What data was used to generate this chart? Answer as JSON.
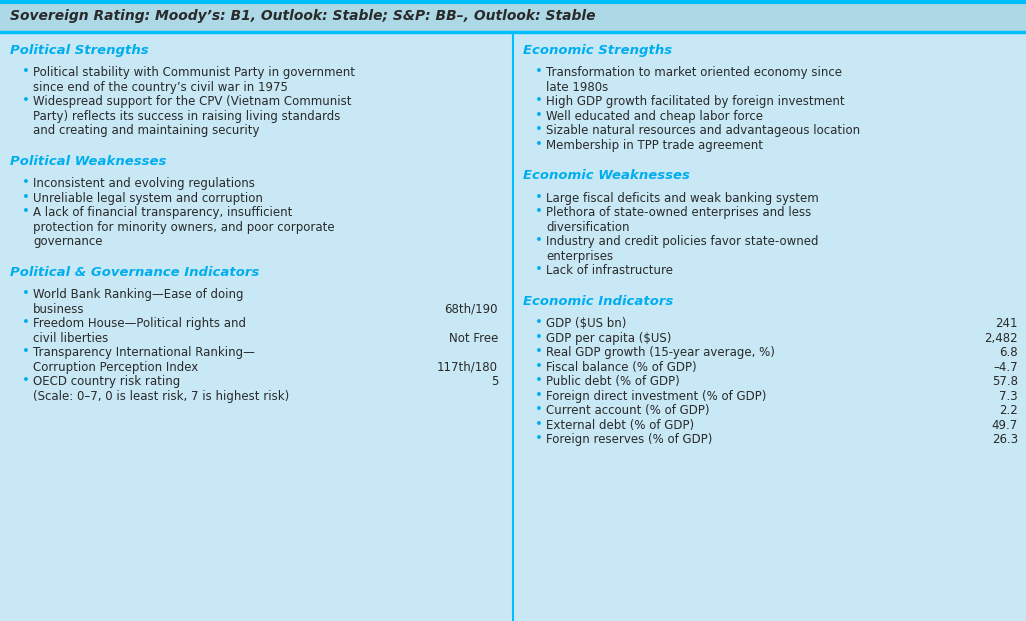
{
  "title": "Sovereign Rating: Moody’s: B1, Outlook: Stable; S&P: BB–, Outlook: Stable",
  "title_bg": "#ADD8E6",
  "title_border_top": "#00BFFF",
  "title_border_bottom": "#00BFFF",
  "body_bg": "#C8E8F5",
  "header_color": "#00AEEF",
  "text_color": "#2a2a2a",
  "bullet_color": "#00AEEF",
  "divider_color": "#00BFFF",
  "left_col": {
    "sections": [
      {
        "header": "Political Strengths",
        "bullets": [
          [
            "Political stability with Communist Party in government",
            "since end of the country’s civil war in 1975"
          ],
          [
            "Widespread support for the CPV (Vietnam Communist",
            "Party) reflects its success in raising living standards",
            "and creating and maintaining security"
          ]
        ]
      },
      {
        "header": "Political Weaknesses",
        "bullets": [
          [
            "Inconsistent and evolving regulations"
          ],
          [
            "Unreliable legal system and corruption"
          ],
          [
            "A lack of financial transparency, insufficient",
            "protection for minority owners, and poor corporate",
            "governance"
          ]
        ]
      },
      {
        "header": "Political & Governance Indicators",
        "bullets": [
          [
            "World Bank Ranking—Ease of doing",
            "business"
          ],
          [
            "Freedom House—Political rights and",
            "civil liberties"
          ],
          [
            "Transparency International Ranking—",
            "Corruption Perception Index"
          ],
          [
            "OECD country risk rating"
          ],
          [
            "(Scale: 0–7, 0 is least risk, 7 is highest risk)"
          ]
        ],
        "values": [
          "68th/190",
          "Not Free",
          "117th/180",
          "5",
          ""
        ]
      }
    ]
  },
  "right_col": {
    "sections": [
      {
        "header": "Economic Strengths",
        "bullets": [
          [
            "Transformation to market oriented economy since",
            "late 1980s"
          ],
          [
            "High GDP growth facilitated by foreign investment"
          ],
          [
            "Well educated and cheap labor force"
          ],
          [
            "Sizable natural resources and advantageous location"
          ],
          [
            "Membership in TPP trade agreement"
          ]
        ]
      },
      {
        "header": "Economic Weaknesses",
        "bullets": [
          [
            "Large fiscal deficits and weak banking system"
          ],
          [
            "Plethora of state-owned enterprises and less",
            "diversification"
          ],
          [
            "Industry and credit policies favor state-owned",
            "enterprises"
          ],
          [
            "Lack of infrastructure"
          ]
        ]
      },
      {
        "header": "Economic Indicators",
        "bullets": [
          [
            "GDP ($US bn)"
          ],
          [
            "GDP per capita ($US)"
          ],
          [
            "Real GDP growth (15-year average, %)"
          ],
          [
            "Fiscal balance (% of GDP)"
          ],
          [
            "Public debt (% of GDP)"
          ],
          [
            "Foreign direct investment (% of GDP)"
          ],
          [
            "Current account (% of GDP)"
          ],
          [
            "External debt (% of GDP)"
          ],
          [
            "Foreign reserves (% of GDP)"
          ]
        ],
        "values": [
          "241",
          "2,482",
          "6.8",
          "–4.7",
          "57.8",
          "7.3",
          "2.2",
          "49.7",
          "26.3"
        ]
      }
    ]
  }
}
